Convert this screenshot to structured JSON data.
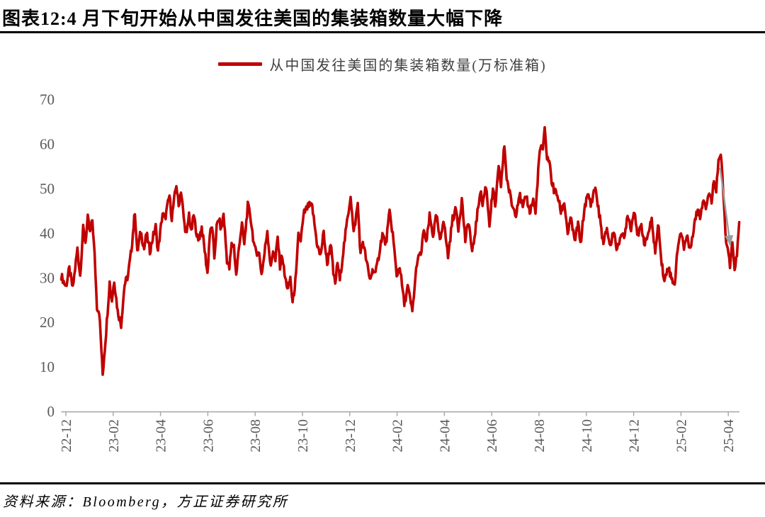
{
  "header": {
    "title": "图表12:4 月下旬开始从中国发往美国的集装箱数量大幅下降"
  },
  "legend": {
    "label": "从中国发往美国的集装箱数量(万标准箱)",
    "line_color": "#C00000"
  },
  "footer": {
    "source": "资料来源：Bloomberg，方正证券研究所"
  },
  "chart_data": {
    "type": "line",
    "title": "图表12:4 月下旬开始从中国发往美国的集装箱数量大幅下降",
    "xlabel": "",
    "ylabel": "",
    "ylim": [
      0,
      70
    ],
    "y_ticks": [
      0,
      10,
      20,
      30,
      40,
      50,
      60,
      70
    ],
    "x_tick_labels": [
      "22-12",
      "23-02",
      "23-04",
      "23-06",
      "23-08",
      "23-10",
      "23-12",
      "24-02",
      "24-04",
      "24-06",
      "24-08",
      "24-10",
      "24-12",
      "25-02",
      "25-04"
    ],
    "x_months_per_tick": 2,
    "grid": false,
    "legend_position": "top-center",
    "line_color": "#C00000",
    "axis_color": "#A6A6A6",
    "tick_label_color": "#595959",
    "noise_amplitude": 0.9,
    "annotation_arrow": {
      "from_month_value": [
        28.42,
        54.7
      ],
      "to_month_value": [
        28.86,
        37.3
      ],
      "color": "#9B9B9B"
    },
    "series": [
      {
        "name": "从中国发往美国的集装箱数量(万标准箱)",
        "color": "#C00000",
        "x_unit": "months_after_2022-12",
        "points": [
          [
            -0.2,
            30.5
          ],
          [
            0,
            28
          ],
          [
            0.15,
            32
          ],
          [
            0.3,
            27.5
          ],
          [
            0.5,
            36.5
          ],
          [
            0.62,
            30.5
          ],
          [
            0.75,
            41
          ],
          [
            0.85,
            38
          ],
          [
            0.95,
            43.3
          ],
          [
            1.05,
            40
          ],
          [
            1.15,
            43
          ],
          [
            1.25,
            35
          ],
          [
            1.35,
            23.5
          ],
          [
            1.45,
            22.5
          ],
          [
            1.6,
            8.3
          ],
          [
            1.75,
            18
          ],
          [
            1.9,
            29
          ],
          [
            2.0,
            25
          ],
          [
            2.1,
            29.5
          ],
          [
            2.25,
            22.5
          ],
          [
            2.4,
            19.5
          ],
          [
            2.55,
            28.5
          ],
          [
            2.7,
            30.5
          ],
          [
            2.85,
            36.5
          ],
          [
            3.0,
            45
          ],
          [
            3.1,
            35.5
          ],
          [
            3.25,
            40.5
          ],
          [
            3.4,
            36.5
          ],
          [
            3.5,
            40
          ],
          [
            3.65,
            36
          ],
          [
            3.8,
            39.5
          ],
          [
            3.9,
            41.5
          ],
          [
            4.0,
            36
          ],
          [
            4.2,
            44.5
          ],
          [
            4.3,
            43
          ],
          [
            4.5,
            48.5
          ],
          [
            4.6,
            43.5
          ],
          [
            4.8,
            51
          ],
          [
            4.9,
            46
          ],
          [
            5.0,
            49.7
          ],
          [
            5.15,
            42
          ],
          [
            5.25,
            39.6
          ],
          [
            5.35,
            44.4
          ],
          [
            5.45,
            40
          ],
          [
            5.55,
            44.1
          ],
          [
            5.75,
            38
          ],
          [
            5.9,
            41.4
          ],
          [
            6.0,
            37.4
          ],
          [
            6.15,
            31
          ],
          [
            6.25,
            39.6
          ],
          [
            6.35,
            41.7
          ],
          [
            6.45,
            34.5
          ],
          [
            6.55,
            41.4
          ],
          [
            6.65,
            43.3
          ],
          [
            6.75,
            40.7
          ],
          [
            6.85,
            44.4
          ],
          [
            7.0,
            34
          ],
          [
            7.1,
            32.1
          ],
          [
            7.2,
            37.4
          ],
          [
            7.3,
            37.2
          ],
          [
            7.4,
            30.5
          ],
          [
            7.55,
            38.5
          ],
          [
            7.65,
            42
          ],
          [
            7.75,
            37.4
          ],
          [
            7.9,
            46.2
          ],
          [
            8.0,
            44.4
          ],
          [
            8.1,
            40.4
          ],
          [
            8.2,
            36.4
          ],
          [
            8.4,
            35.3
          ],
          [
            8.5,
            30.8
          ],
          [
            8.6,
            34.3
          ],
          [
            8.75,
            40.7
          ],
          [
            8.9,
            32.1
          ],
          [
            9.0,
            36.4
          ],
          [
            9.1,
            33.7
          ],
          [
            9.2,
            39.1
          ],
          [
            9.3,
            32.7
          ],
          [
            9.4,
            35.1
          ],
          [
            9.5,
            30.5
          ],
          [
            9.65,
            27.3
          ],
          [
            9.75,
            30
          ],
          [
            9.85,
            24.3
          ],
          [
            10.0,
            30.5
          ],
          [
            10.1,
            39.6
          ],
          [
            10.2,
            38.5
          ],
          [
            10.35,
            44.6
          ],
          [
            10.55,
            46.2
          ],
          [
            10.7,
            46
          ],
          [
            10.9,
            38
          ],
          [
            11.05,
            34.8
          ],
          [
            11.2,
            40.1
          ],
          [
            11.35,
            32.9
          ],
          [
            11.5,
            38
          ],
          [
            11.62,
            31
          ],
          [
            11.7,
            28.5
          ],
          [
            11.8,
            33.5
          ],
          [
            11.9,
            29.5
          ],
          [
            12.05,
            36
          ],
          [
            12.15,
            40
          ],
          [
            12.37,
            48.6
          ],
          [
            12.5,
            39.9
          ],
          [
            12.68,
            46.6
          ],
          [
            12.8,
            35.1
          ],
          [
            12.9,
            38.3
          ],
          [
            13.2,
            29.6
          ],
          [
            13.35,
            32
          ],
          [
            13.45,
            30.7
          ],
          [
            13.75,
            39.9
          ],
          [
            13.9,
            37.5
          ],
          [
            14.06,
            44.7
          ],
          [
            14.2,
            39.9
          ],
          [
            14.37,
            30.4
          ],
          [
            14.5,
            32.8
          ],
          [
            14.7,
            24
          ],
          [
            14.85,
            28
          ],
          [
            15.05,
            22.4
          ],
          [
            15.25,
            33.6
          ],
          [
            15.45,
            35.9
          ],
          [
            15.55,
            41.2
          ],
          [
            15.65,
            37.4
          ],
          [
            15.8,
            43.8
          ],
          [
            15.95,
            39.6
          ],
          [
            16.1,
            44.1
          ],
          [
            16.25,
            38
          ],
          [
            16.4,
            43.3
          ],
          [
            16.6,
            34.8
          ],
          [
            16.8,
            43.3
          ],
          [
            16.95,
            45.4
          ],
          [
            17.05,
            41.2
          ],
          [
            17.2,
            47.6
          ],
          [
            17.35,
            38.5
          ],
          [
            17.5,
            42.8
          ],
          [
            17.65,
            35.3
          ],
          [
            17.85,
            43.3
          ],
          [
            18.0,
            49.7
          ],
          [
            18.1,
            46.5
          ],
          [
            18.25,
            50.8
          ],
          [
            18.4,
            42.2
          ],
          [
            18.55,
            49.7
          ],
          [
            18.65,
            46
          ],
          [
            18.8,
            54.5
          ],
          [
            18.9,
            50.8
          ],
          [
            19.05,
            59.8
          ],
          [
            19.15,
            52.4
          ],
          [
            19.25,
            49.7
          ],
          [
            19.4,
            46
          ],
          [
            19.55,
            44.5
          ],
          [
            19.7,
            48.9
          ],
          [
            19.85,
            45.5
          ],
          [
            20.0,
            48.5
          ],
          [
            20.15,
            44.8
          ],
          [
            20.3,
            47.5
          ],
          [
            20.4,
            44.4
          ],
          [
            20.55,
            56.6
          ],
          [
            20.65,
            59.8
          ],
          [
            20.72,
            58.2
          ],
          [
            20.8,
            63.3
          ],
          [
            20.9,
            57.2
          ],
          [
            21.0,
            56.1
          ],
          [
            21.1,
            51.8
          ],
          [
            21.2,
            49.7
          ],
          [
            21.35,
            48.6
          ],
          [
            21.5,
            44.9
          ],
          [
            21.65,
            47
          ],
          [
            21.8,
            40.1
          ],
          [
            21.95,
            43.3
          ],
          [
            22.1,
            38
          ],
          [
            22.25,
            42.2
          ],
          [
            22.35,
            37.4
          ],
          [
            22.55,
            46.5
          ],
          [
            22.7,
            48.6
          ],
          [
            22.8,
            46.5
          ],
          [
            23.0,
            50.5
          ],
          [
            23.1,
            46.5
          ],
          [
            23.2,
            43.3
          ],
          [
            23.35,
            37.4
          ],
          [
            23.5,
            41.2
          ],
          [
            23.65,
            36.9
          ],
          [
            23.8,
            40.7
          ],
          [
            23.95,
            35.9
          ],
          [
            24.1,
            40.1
          ],
          [
            24.25,
            38.5
          ],
          [
            24.4,
            44.4
          ],
          [
            24.55,
            41.2
          ],
          [
            24.7,
            45.4
          ],
          [
            24.85,
            39.1
          ],
          [
            25.0,
            41.7
          ],
          [
            25.15,
            37.4
          ],
          [
            25.3,
            40.1
          ],
          [
            25.45,
            42.8
          ],
          [
            25.6,
            35.9
          ],
          [
            25.75,
            42.2
          ],
          [
            25.85,
            34.8
          ],
          [
            26.0,
            28.9
          ],
          [
            26.15,
            32.7
          ],
          [
            26.3,
            30
          ],
          [
            26.45,
            28.6
          ],
          [
            26.6,
            38
          ],
          [
            26.75,
            40.1
          ],
          [
            26.85,
            36.9
          ],
          [
            27.0,
            39.6
          ],
          [
            27.1,
            35.9
          ],
          [
            27.3,
            42.2
          ],
          [
            27.45,
            45.4
          ],
          [
            27.55,
            43.8
          ],
          [
            27.7,
            48.1
          ],
          [
            27.8,
            46
          ],
          [
            27.95,
            49.2
          ],
          [
            28.05,
            47
          ],
          [
            28.15,
            52.4
          ],
          [
            28.25,
            49.7
          ],
          [
            28.35,
            56.6
          ],
          [
            28.45,
            57.7
          ],
          [
            28.55,
            49.7
          ],
          [
            28.65,
            40.1
          ],
          [
            28.75,
            35.9
          ],
          [
            28.85,
            32.7
          ],
          [
            28.95,
            37.4
          ],
          [
            29.05,
            32.4
          ],
          [
            29.15,
            34.8
          ],
          [
            29.25,
            42.5
          ]
        ]
      }
    ]
  }
}
